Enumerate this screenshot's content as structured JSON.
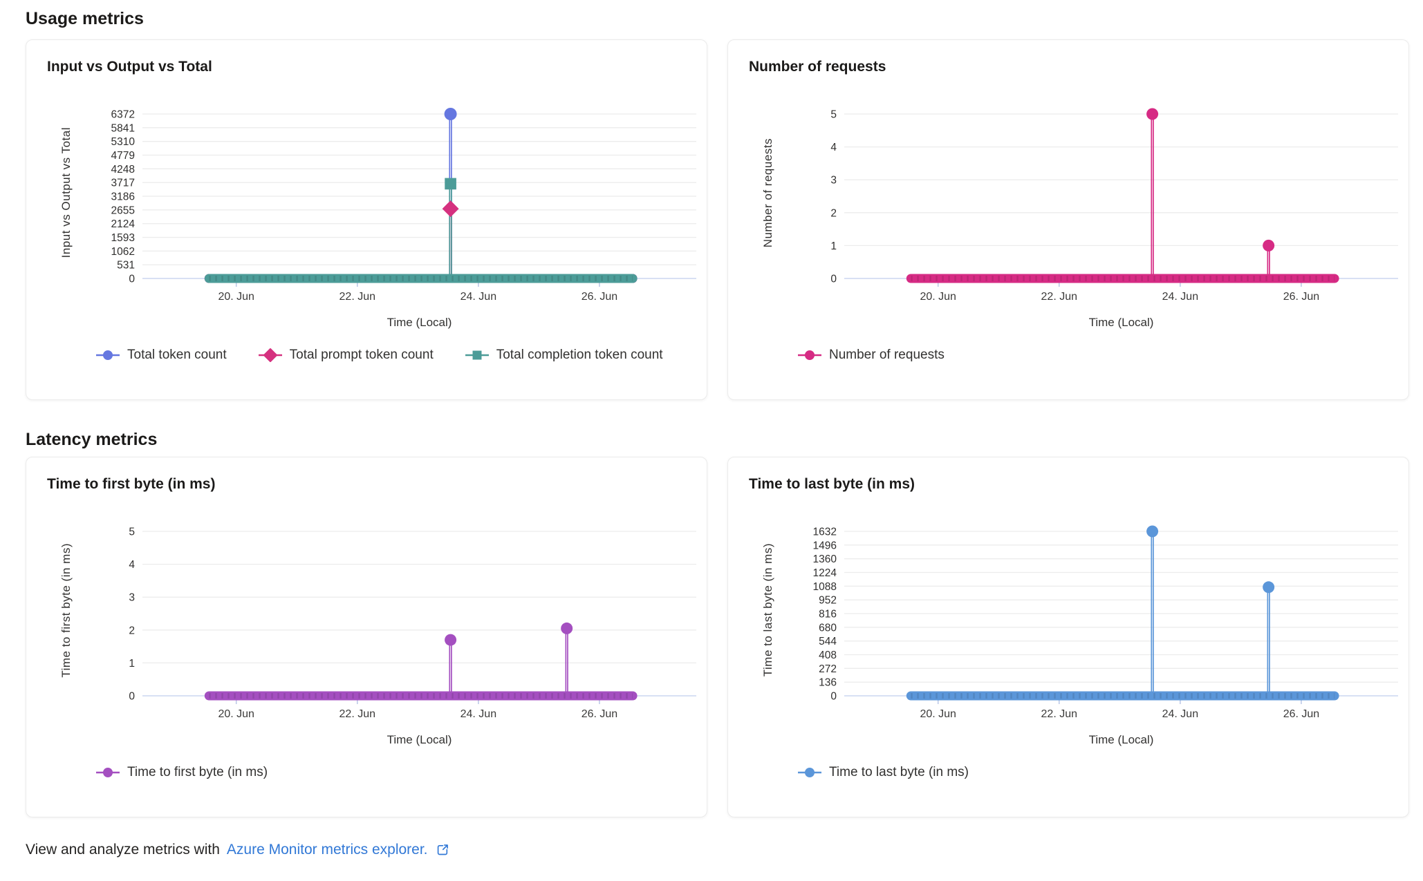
{
  "sections": [
    {
      "title": "Usage metrics"
    },
    {
      "title": "Latency metrics"
    }
  ],
  "footer": {
    "text": "View and analyze metrics with",
    "link_label": "Azure Monitor metrics explorer.",
    "icon": "external-link-icon",
    "link_color": "#3178d6"
  },
  "chart_data": [
    {
      "type": "line",
      "title": "Input vs Output vs Total",
      "xlabel": "Time (Local)",
      "ylabel": "Input vs Output vs Total",
      "ylim": [
        0,
        6372
      ],
      "x_domain": [
        18.45,
        27.6
      ],
      "x_ticks": [
        {
          "value": 20,
          "label": "20. Jun"
        },
        {
          "value": 22,
          "label": "22. Jun"
        },
        {
          "value": 24,
          "label": "24. Jun"
        },
        {
          "value": 26,
          "label": "26. Jun"
        }
      ],
      "y_ticks": [
        0,
        531,
        1062,
        1593,
        2124,
        2655,
        3186,
        3717,
        4248,
        4779,
        5310,
        5841,
        6372
      ],
      "grid": true,
      "legend_position": "bottom",
      "series": [
        {
          "name": "Total token count",
          "color": "#6577e0",
          "marker": "circle",
          "marker_size": 9,
          "baseline": {
            "from": 19.55,
            "to": 26.55,
            "y": 0
          },
          "spikes": [
            {
              "x": 23.54,
              "y": 6372
            }
          ]
        },
        {
          "name": "Total prompt token count",
          "color": "#d5317f",
          "marker": "diamond",
          "marker_size": 8,
          "baseline": {
            "from": 19.55,
            "to": 26.55,
            "y": 0
          },
          "spikes": [
            {
              "x": 23.54,
              "y": 2702
            }
          ]
        },
        {
          "name": "Total completion token count",
          "color": "#4c9c98",
          "marker": "square",
          "marker_size": 9,
          "baseline": {
            "from": 19.55,
            "to": 26.55,
            "y": 0
          },
          "spikes": [
            {
              "x": 23.54,
              "y": 3670
            }
          ]
        }
      ]
    },
    {
      "type": "line",
      "title": "Number of requests",
      "xlabel": "Time (Local)",
      "ylabel": "Number of requests",
      "ylim": [
        0,
        5
      ],
      "x_domain": [
        18.45,
        27.6
      ],
      "x_ticks": [
        {
          "value": 20,
          "label": "20. Jun"
        },
        {
          "value": 22,
          "label": "22. Jun"
        },
        {
          "value": 24,
          "label": "24. Jun"
        },
        {
          "value": 26,
          "label": "26. Jun"
        }
      ],
      "y_ticks": [
        0,
        1,
        2,
        3,
        4,
        5
      ],
      "grid": true,
      "legend_position": "bottom",
      "series": [
        {
          "name": "Number of requests",
          "color": "#d62b84",
          "marker": "circle",
          "marker_size": 8.5,
          "baseline": {
            "from": 19.55,
            "to": 26.55,
            "y": 0
          },
          "spikes": [
            {
              "x": 23.54,
              "y": 5
            },
            {
              "x": 25.46,
              "y": 1
            }
          ]
        }
      ]
    },
    {
      "type": "line",
      "title": "Time to first byte (in ms)",
      "xlabel": "Time (Local)",
      "ylabel": "Time to first byte (in ms)",
      "ylim": [
        0,
        5
      ],
      "x_domain": [
        18.45,
        27.6
      ],
      "x_ticks": [
        {
          "value": 20,
          "label": "20. Jun"
        },
        {
          "value": 22,
          "label": "22. Jun"
        },
        {
          "value": 24,
          "label": "24. Jun"
        },
        {
          "value": 26,
          "label": "26. Jun"
        }
      ],
      "y_ticks": [
        0,
        1,
        2,
        3,
        4,
        5
      ],
      "grid": true,
      "legend_position": "bottom",
      "series": [
        {
          "name": "Time to first byte (in ms)",
          "color": "#a44fc0",
          "marker": "circle",
          "marker_size": 8.5,
          "baseline": {
            "from": 19.55,
            "to": 26.55,
            "y": 0
          },
          "spikes": [
            {
              "x": 23.54,
              "y": 1.7
            },
            {
              "x": 25.46,
              "y": 2.05
            }
          ]
        }
      ]
    },
    {
      "type": "line",
      "title": "Time to last byte (in ms)",
      "xlabel": "Time (Local)",
      "ylabel": "Time to last byte (in ms)",
      "ylim": [
        0,
        1632
      ],
      "x_domain": [
        18.45,
        27.6
      ],
      "x_ticks": [
        {
          "value": 20,
          "label": "20. Jun"
        },
        {
          "value": 22,
          "label": "22. Jun"
        },
        {
          "value": 24,
          "label": "24. Jun"
        },
        {
          "value": 26,
          "label": "26. Jun"
        }
      ],
      "y_ticks": [
        0,
        136,
        272,
        408,
        544,
        680,
        816,
        952,
        1088,
        1224,
        1360,
        1496,
        1632
      ],
      "grid": true,
      "legend_position": "bottom",
      "series": [
        {
          "name": "Time to last byte (in ms)",
          "color": "#5b96d9",
          "marker": "circle",
          "marker_size": 8.5,
          "baseline": {
            "from": 19.55,
            "to": 26.55,
            "y": 0
          },
          "spikes": [
            {
              "x": 23.54,
              "y": 1632
            },
            {
              "x": 25.46,
              "y": 1078
            }
          ]
        }
      ]
    }
  ]
}
